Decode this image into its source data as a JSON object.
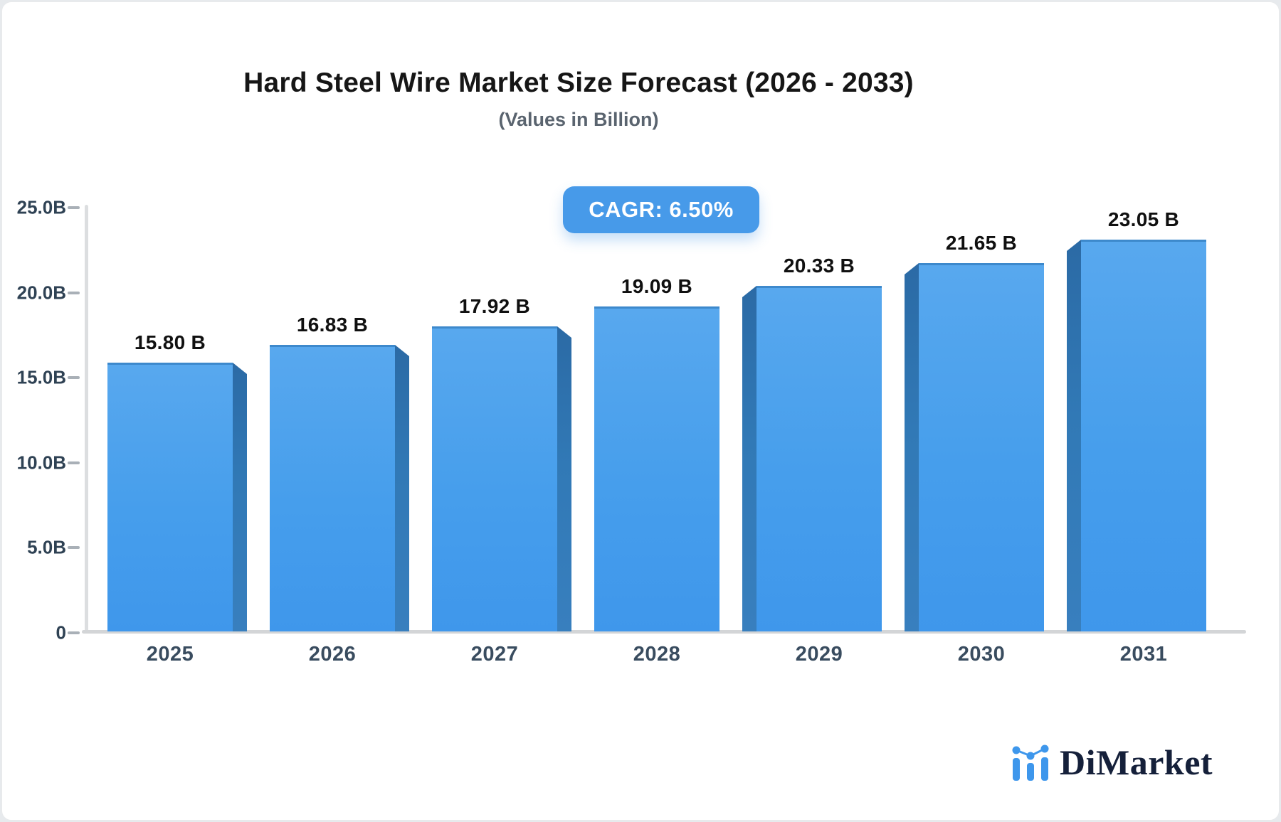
{
  "header": {
    "title": "Hard Steel Wire Market Size Forecast (2026 - 2033)",
    "subtitle": "(Values in Billion)"
  },
  "badge": {
    "label": "CAGR: 6.50%",
    "bg_color": "#479ae9",
    "text_color": "#ffffff"
  },
  "chart_data": {
    "type": "bar",
    "title": "Hard Steel Wire Market Size Forecast (2026 - 2033)",
    "subtitle": "(Values in Billion)",
    "categories": [
      "2025",
      "2026",
      "2027",
      "2028",
      "2029",
      "2030",
      "2031"
    ],
    "values": [
      15.8,
      16.83,
      17.92,
      19.09,
      20.33,
      21.65,
      23.05
    ],
    "value_labels": [
      "15.80 B",
      "16.83 B",
      "17.92 B",
      "19.09 B",
      "20.33 B",
      "21.65 B",
      "23.05 B"
    ],
    "xlabel": "",
    "ylabel": "",
    "ylim": [
      0,
      25
    ],
    "y_tick_values": [
      25,
      20,
      15,
      10,
      5,
      0
    ],
    "y_tick_labels": [
      "25.0B",
      "20.0B",
      "15.0B",
      "10.0B",
      "5.0B",
      "0"
    ],
    "grid": false,
    "legend": false,
    "bar_color_top": "#58a8ee",
    "bar_color_bottom": "#3f97eb",
    "bar_side_color": "#2e6fab",
    "annotation": "CAGR: 6.50%"
  },
  "logo": {
    "text": "DiMarket",
    "icon": "bar-chart-logo-icon",
    "icon_color": "#3e97ec",
    "text_color": "#15203a"
  }
}
